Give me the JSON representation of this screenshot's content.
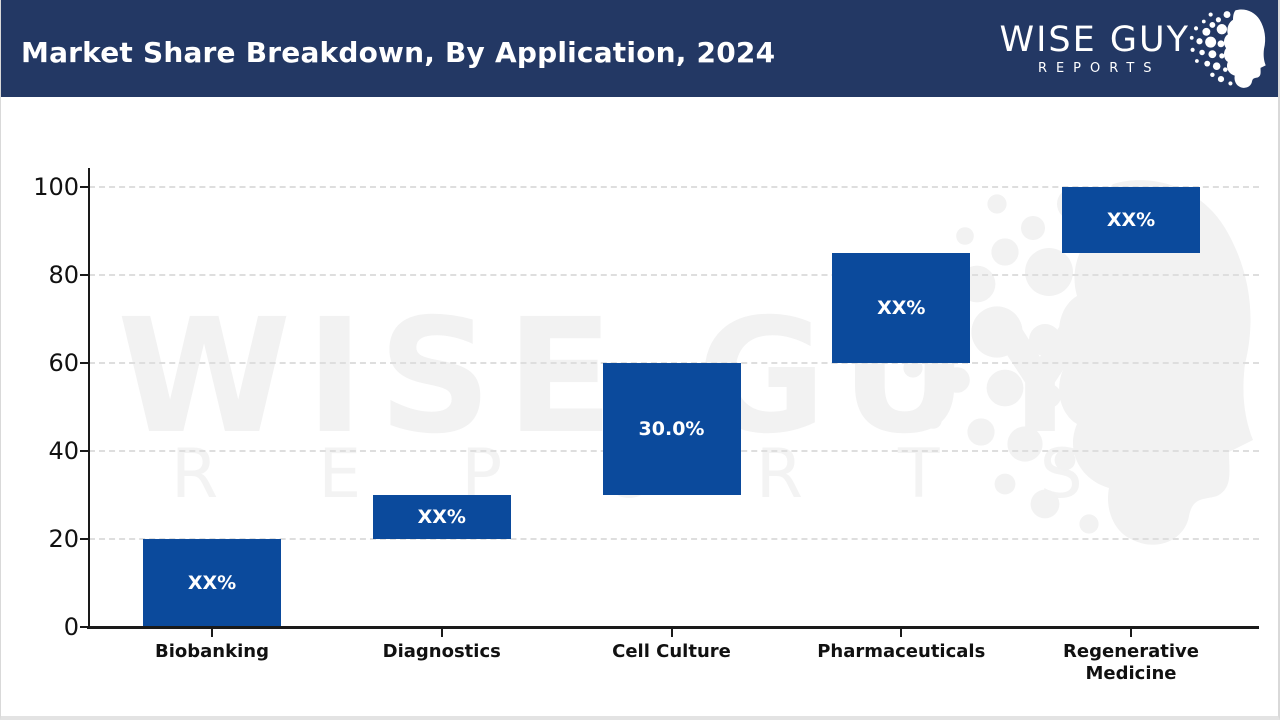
{
  "header": {
    "title": "Market Share Breakdown, By Application, 2024",
    "bg_color": "#233864",
    "logo": {
      "line1": "WISE GUY",
      "line2": "REPORTS"
    }
  },
  "watermark": {
    "line1": "WISE GUY",
    "line2": "REPORTS"
  },
  "chart_data": {
    "type": "bar",
    "subtype": "waterfall",
    "title": "Market Share Breakdown, By Application, 2024",
    "categories": [
      "Biobanking",
      "Diagnostics",
      "Cell Culture",
      "Pharmaceuticals",
      "Regenerative Medicine"
    ],
    "segments": [
      {
        "category": "Biobanking",
        "start": 0,
        "end": 20,
        "label": "XX%"
      },
      {
        "category": "Diagnostics",
        "start": 20,
        "end": 30,
        "label": "XX%"
      },
      {
        "category": "Cell Culture",
        "start": 30,
        "end": 60,
        "label": "30.0%"
      },
      {
        "category": "Pharmaceuticals",
        "start": 60,
        "end": 85,
        "label": "XX%"
      },
      {
        "category": "Regenerative Medicine",
        "start": 85,
        "end": 100,
        "label": "XX%"
      }
    ],
    "yticks": [
      0,
      20,
      40,
      60,
      80,
      100
    ],
    "ylim": [
      0,
      105
    ],
    "xlabel": "",
    "ylabel": "",
    "grid": "horizontal-dashed",
    "legend": "none",
    "bar_color": "#0b4a9c",
    "bar_label_color": "#ffffff",
    "gridline_color": "#dedede",
    "axis_color": "#1a1a1a"
  }
}
